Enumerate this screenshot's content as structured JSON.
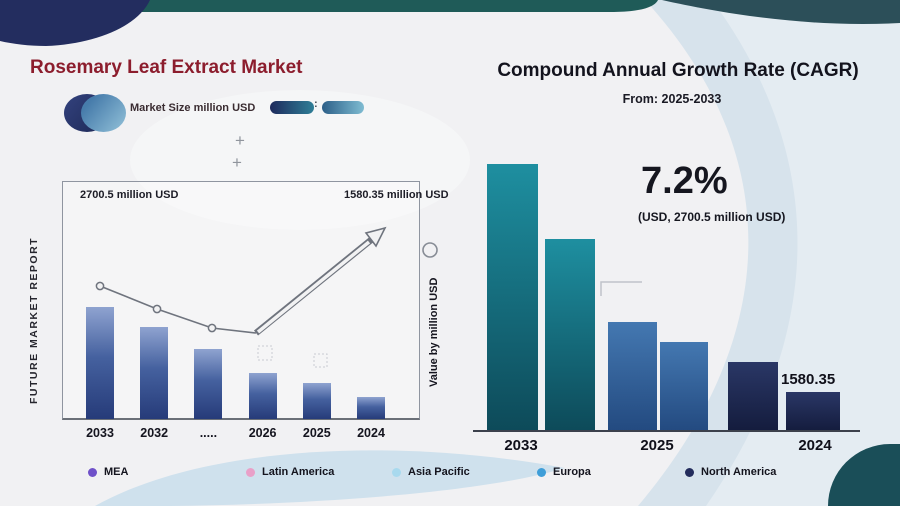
{
  "branding": {
    "watermark": "FUTURE MARKET REPORT"
  },
  "decor": {
    "plus": "+",
    "colon": ":"
  },
  "left_panel": {
    "title": "Rosemary Leaf Extract Market",
    "legend_label": "Market Size million USD",
    "start_value_label": "2700.5 million USD",
    "end_value_label": "1580.35 million USD"
  },
  "right_panel": {
    "title": "Compound Annual Growth Rate (CAGR)",
    "subtitle": "From: 2025-2033",
    "cagr_value": "7.2%",
    "cagr_note": "(USD, 2700.5 million USD)",
    "value_axis_label": "Value by million USD",
    "end_value_label": "1580.35"
  },
  "chart_data": [
    {
      "type": "bar",
      "title": "Rosemary Leaf Extract Market - Market Size million USD",
      "categories": [
        "2033",
        "2032",
        ".....",
        "2026",
        "2025",
        "2024"
      ],
      "values": [
        2700.5,
        2451,
        2178,
        1879,
        1755,
        1580.35
      ],
      "annotations": [
        "2700.5 million USD",
        "1580.35 million USD"
      ],
      "xlabel": "",
      "ylabel": "Market Size million USD",
      "trend": "bars decline from 2033 to 2024 with marker line and upward forecast arrow",
      "bar_color_top": "#8fa3d0",
      "bar_color_bottom": "#263b79"
    },
    {
      "type": "bar",
      "title": "Compound Annual Growth Rate (CAGR)",
      "subtitle": "From: 2025-2033",
      "cagr": "7.2%",
      "note": "(USD, 2700.5 million USD)",
      "ylabel": "Value by million USD",
      "categories": [
        "2033",
        "2025",
        "2024"
      ],
      "groups": [
        {
          "label": "2033",
          "values": [
            2700.5,
            2330
          ],
          "color_top": "#1e8fa0",
          "color_bottom": "#0d4a59"
        },
        {
          "label": "2025",
          "values": [
            1925,
            1825
          ],
          "color_top": "#4478b1",
          "color_bottom": "#234a80"
        },
        {
          "label": "2024",
          "values": [
            1730,
            1580.35
          ],
          "color_top": "#2a3766",
          "color_bottom": "#141c3d"
        }
      ],
      "end_label": "1580.35"
    }
  ],
  "bottom_legend": [
    {
      "label": "MEA",
      "color": "#6f51c9"
    },
    {
      "label": "Latin America",
      "color": "#e9a0c8"
    },
    {
      "label": "Asia Pacific",
      "color": "#a8d9ee"
    },
    {
      "label": "Europa",
      "color": "#3f9ed8"
    },
    {
      "label": "North America",
      "color": "#232c5c"
    }
  ]
}
